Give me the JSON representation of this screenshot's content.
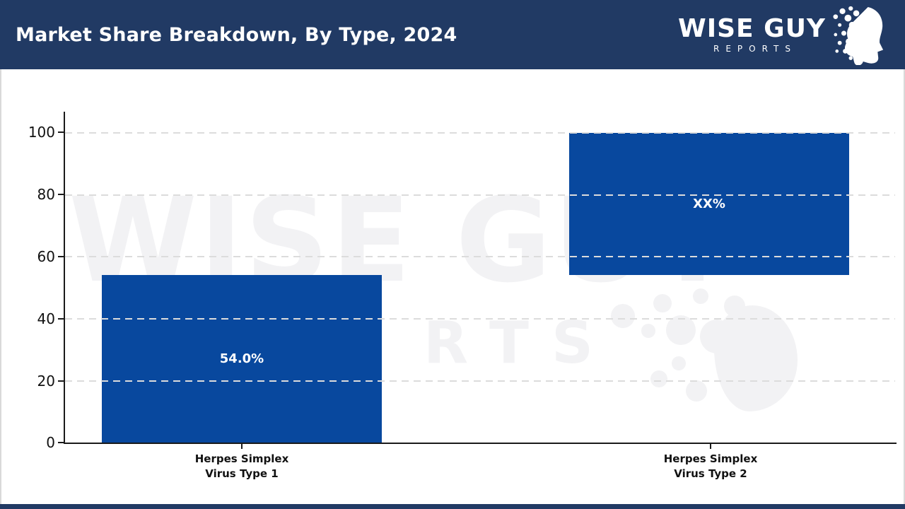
{
  "header": {
    "title": "Market Share Breakdown, By Type, 2024",
    "logo": {
      "name": "WISE GUY",
      "tagline": "REPORTS"
    }
  },
  "watermark": {
    "line1": "WISE GUY",
    "letter_r": "R",
    "letter_t": "T",
    "letter_s": "S"
  },
  "chart_data": {
    "type": "bar",
    "title": "Market Share Breakdown, By Type, 2024",
    "categories": [
      "Herpes Simplex Virus Type 1",
      "Herpes Simplex Virus Type 2"
    ],
    "x_labels": [
      {
        "line1": "Herpes Simplex",
        "line2": "Virus Type 1"
      },
      {
        "line1": "Herpes Simplex",
        "line2": "Virus Type 2"
      }
    ],
    "bars": [
      {
        "base": 0,
        "top": 54,
        "label": "54.0%"
      },
      {
        "base": 54,
        "top": 100,
        "label": "XX%"
      }
    ],
    "values": [
      54.0,
      46.0
    ],
    "unit": "%",
    "xlabel": "",
    "ylabel": "",
    "ylim": [
      0,
      107
    ],
    "yticks": [
      0,
      20,
      40,
      60,
      80,
      100
    ],
    "ytick_labels": [
      "0",
      "20",
      "40",
      "60",
      "80",
      "100"
    ],
    "grid": {
      "axis": "y",
      "style": "dashed",
      "color": "#dcdcdc"
    },
    "legend": null,
    "annotation": "Second bar floats from 54 to 100 and is labeled XX%"
  },
  "colors": {
    "header": "#213a64",
    "footer": "#213a64",
    "bar": "#08489e",
    "axis": "#1a1a1a",
    "grid": "#dcdcdc",
    "watermark": "#f2f2f4",
    "label_on_bar": "#ffffff"
  }
}
